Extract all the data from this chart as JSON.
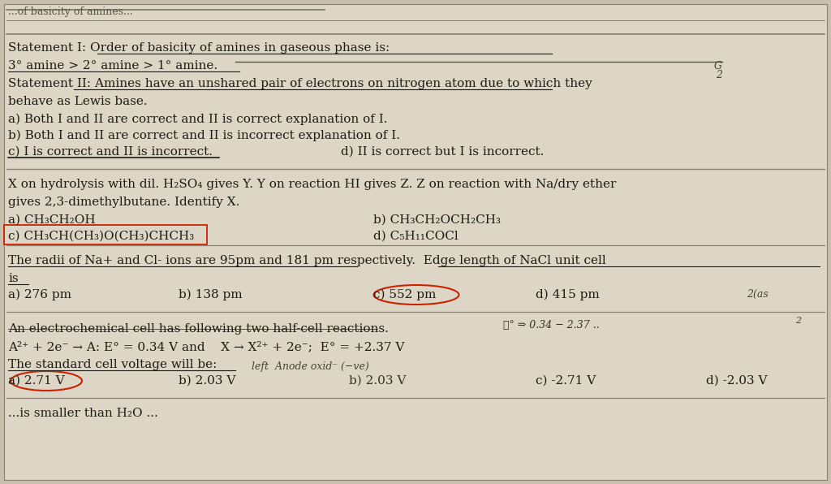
{
  "bg_color": "#c8bfaf",
  "paper_color": "#ddd5c5",
  "black": "#1c1c14",
  "red": "#cc2200",
  "gray_line": "#8a8070",
  "fs": 11.0,
  "fs_small": 9.0,
  "line1": "Statement I: Order of basicity of amines in gaseous phase is:",
  "line2": "3° amine > 2° amine > 1° amine.",
  "line3": "Statement II: Amines have an unshared pair of electrons on nitrogen atom due to which they",
  "line4": "behave as Lewis base.",
  "line5a": "a) Both I and II are correct and II is correct explanation of I.",
  "line5b": "b) Both I and II are correct and II is incorrect explanation of I.",
  "line5c": "c) I is correct and II is incorrect.",
  "line5d": "d) II is correct but I is incorrect.",
  "line6": "X on hydrolysis with dil. H₂SO₄ gives Y. Y on reaction HI gives Z. Z on reaction with Na/dry ether",
  "line7": "gives 2,3-dimethylbutane. Identify X.",
  "line8a": "a) CH₃CH₂OH",
  "line8b": "b) CH₃CH₂OCH₂CH₃",
  "line8c": "c) CH₃CH(CH₃)O(CH₃)CHCH₃",
  "line8d": "d) C₅H₁₁COCl",
  "line9": "The radii of Na+ and Cl- ions are 95pm and 181 pm respectively.  Edge length of NaCl unit cell",
  "line10": "is",
  "line11a": "a) 276 pm",
  "line11b": "b) 138 pm",
  "line11c": "c) 552 pm",
  "line11d": "d) 415 pm",
  "line12": "An electrochemical cell has following two half-cell reactions.",
  "line13": "A²⁺ + 2e⁻ → A: E° = 0.34 V and    X → X²⁺ + 2e⁻;  E° = +2.37 V",
  "line14": "The standard cell voltage will be:",
  "line15a": "a) 2.71 V",
  "line15b": "b) 2.03 V",
  "line15c": "c) -2.71 V",
  "line15d": "d) -2.03 V",
  "line16": "...is smaller than H₂O ..."
}
